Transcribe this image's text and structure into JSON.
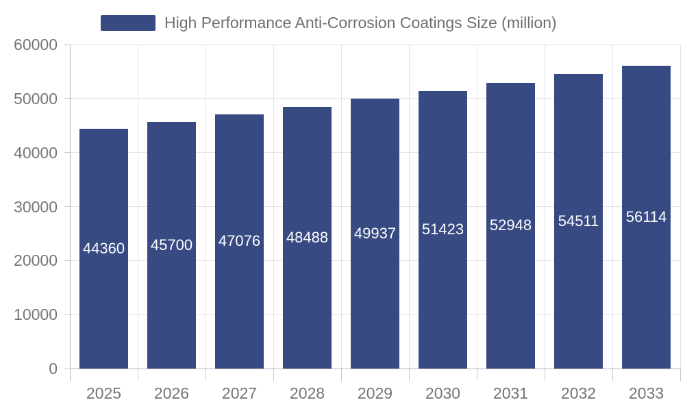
{
  "chart_data": {
    "type": "bar",
    "title": "High Performance Anti-Corrosion Coatings Size (million)",
    "series_name": "High Performance Anti-Corrosion Coatings Size (million)",
    "categories": [
      "2025",
      "2026",
      "2027",
      "2028",
      "2029",
      "2030",
      "2031",
      "2032",
      "2033"
    ],
    "values": [
      44360,
      45700,
      47076,
      48488,
      49937,
      51423,
      52948,
      54511,
      56114
    ],
    "xlabel": "",
    "ylabel": "",
    "ylim": [
      0,
      60000
    ],
    "ytick_step": 10000,
    "ytick_labels": [
      "0",
      "10000",
      "20000",
      "30000",
      "40000",
      "50000",
      "60000"
    ],
    "grid": true,
    "legend_position": "top",
    "value_label_position": "inside-center",
    "colors": {
      "bar": "#374a82",
      "grid": "#e4e4e4",
      "axis_line": "#b5b5b5",
      "tick": "#c9c9c9",
      "tick_label": "#757575",
      "value_label": "#ffffff",
      "legend_text": "#6f6f6f",
      "background": "#ffffff"
    }
  }
}
